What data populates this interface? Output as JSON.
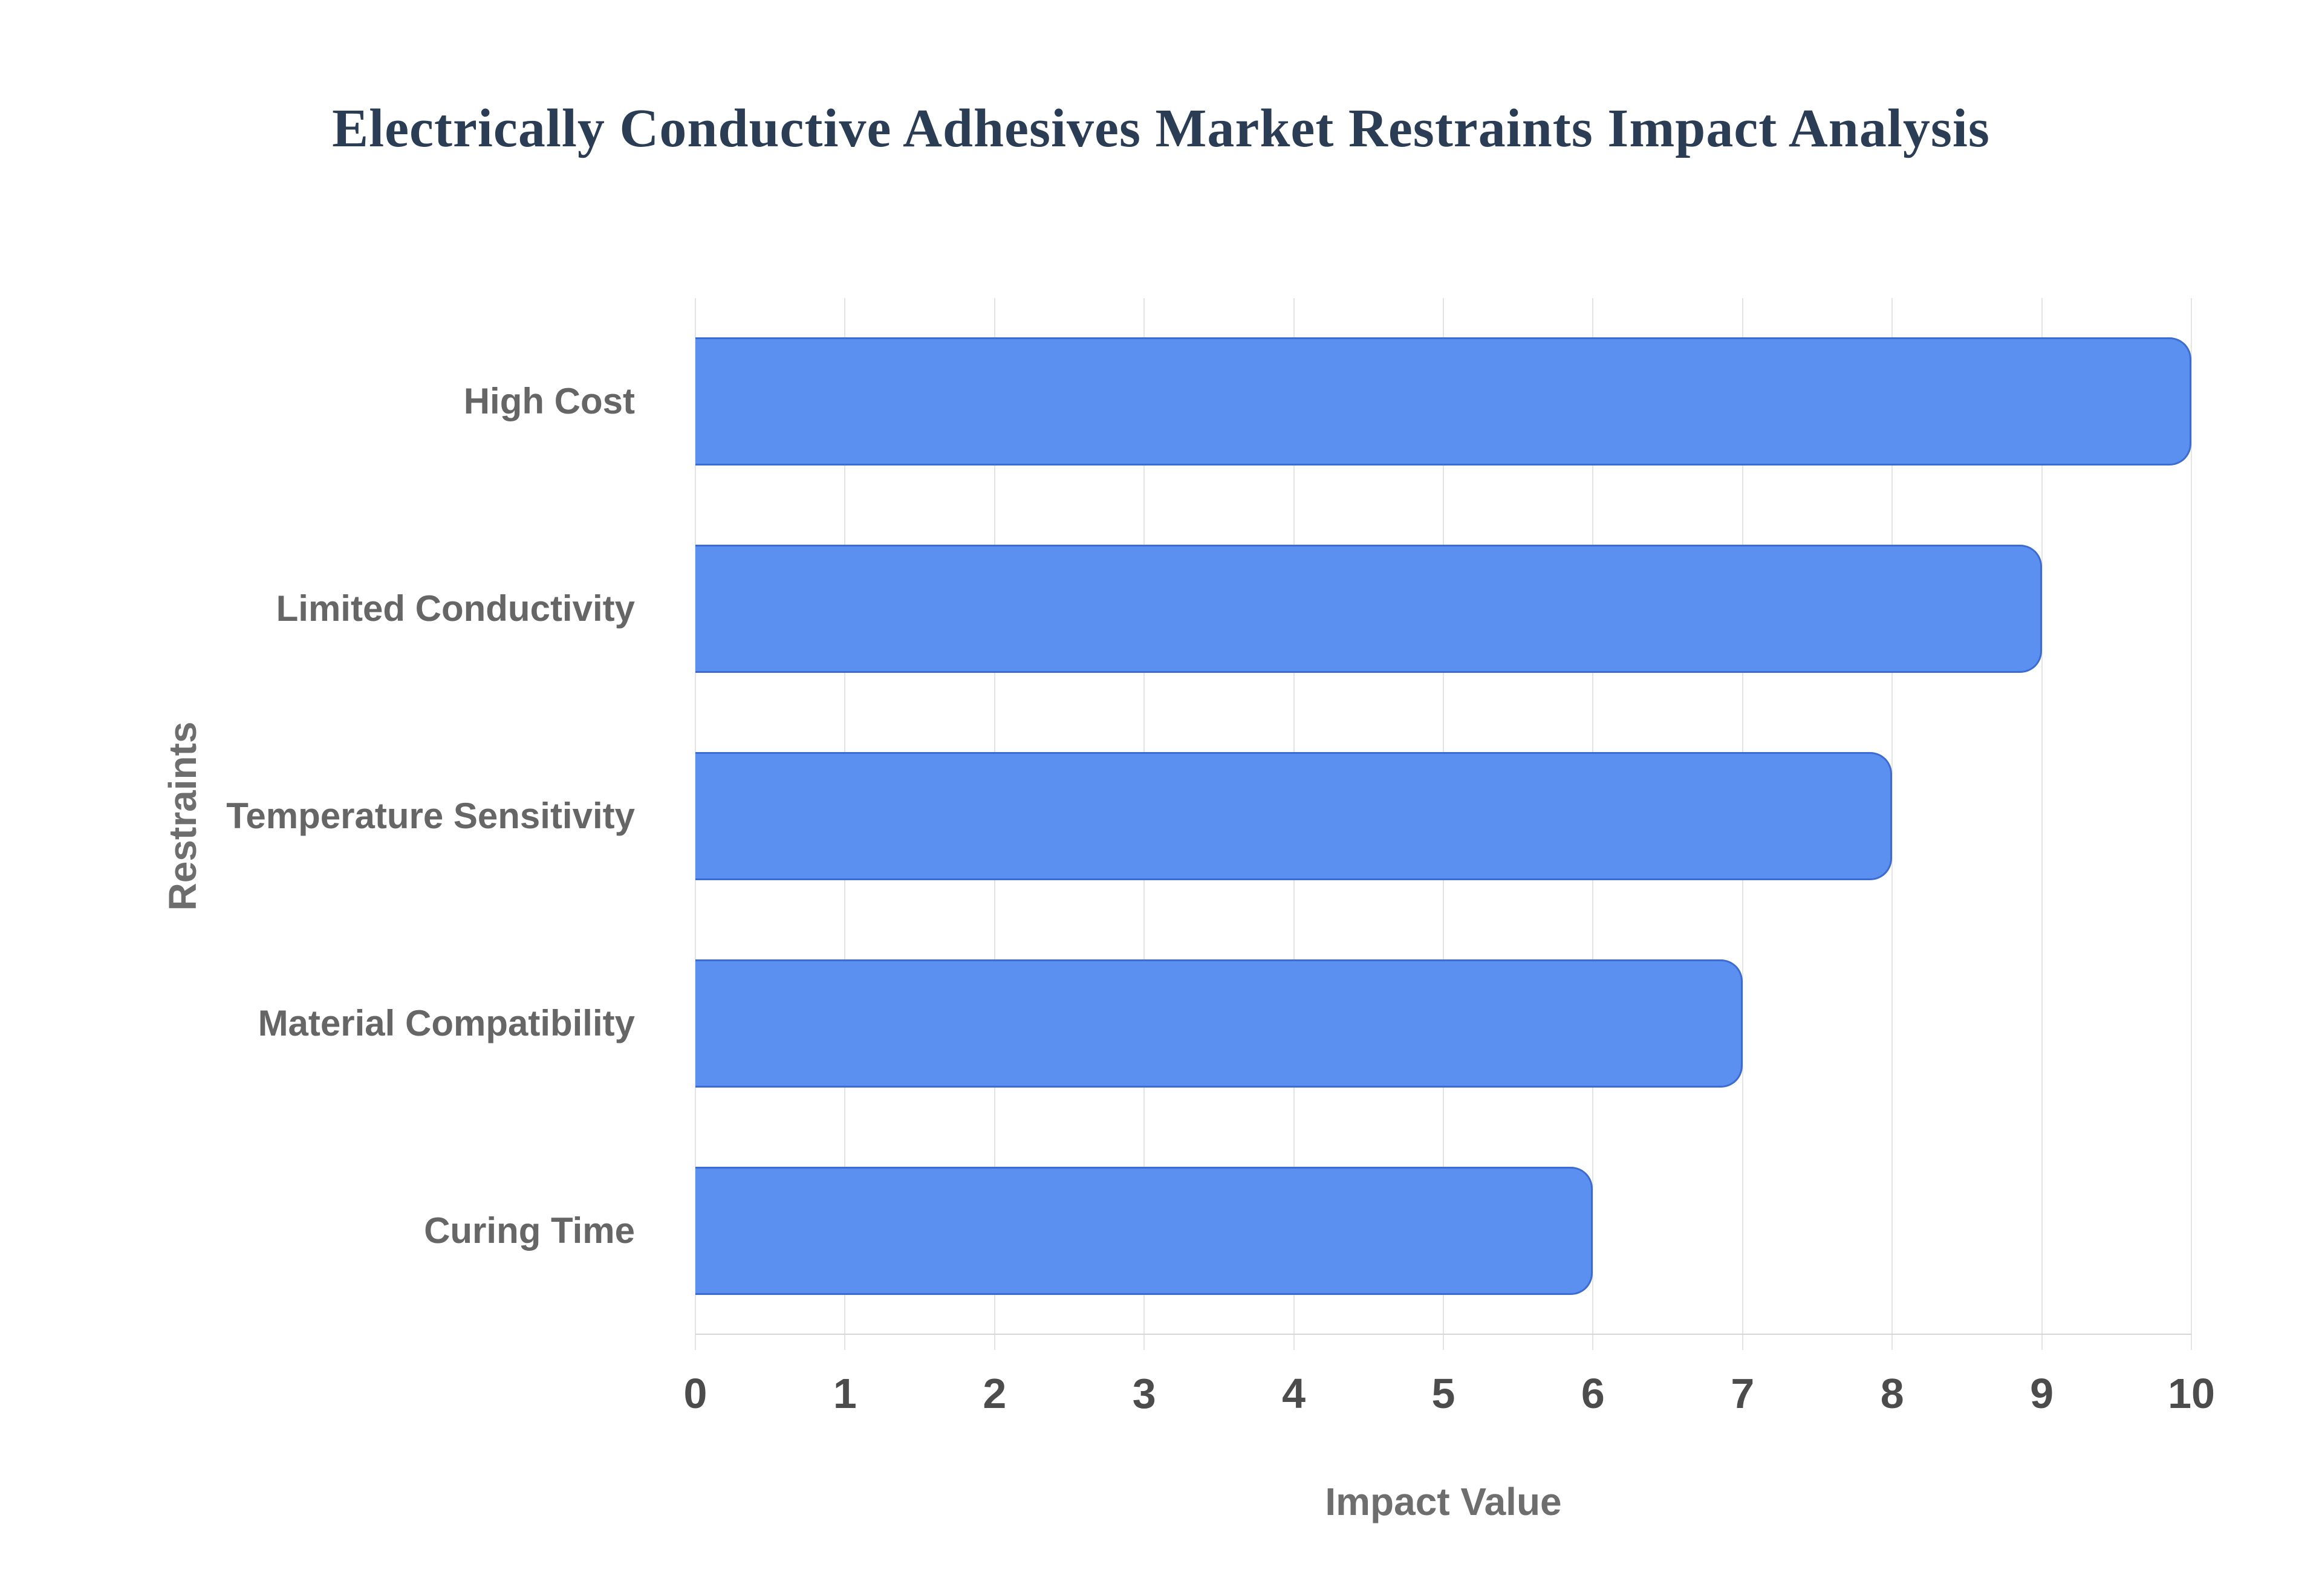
{
  "chart_data": {
    "type": "bar",
    "orientation": "horizontal",
    "title": "Electrically Conductive Adhesives Market Restraints Impact Analysis",
    "categories": [
      "High Cost",
      "Limited Conductivity",
      "Temperature Sensitivity",
      "Material Compatibility",
      "Curing Time"
    ],
    "values": [
      10,
      9,
      8,
      7,
      6
    ],
    "xlabel": "Impact Value",
    "ylabel": "Restraints",
    "xlim": [
      0,
      10
    ],
    "xticks": [
      0,
      1,
      2,
      3,
      4,
      5,
      6,
      7,
      8,
      9,
      10
    ],
    "grid": "vertical-only",
    "legend": "none",
    "colors": {
      "background": "#ffffff",
      "title": "#2b3d54",
      "bar_fill": "#5b8ff0",
      "bar_border": "#3b6cd4",
      "gridline": "#e4e4e4",
      "axis_line": "#d6d6d6",
      "tick_label": "#4c4c4c",
      "category_label": "#666666",
      "axis_title": "#6e6e6e"
    }
  }
}
